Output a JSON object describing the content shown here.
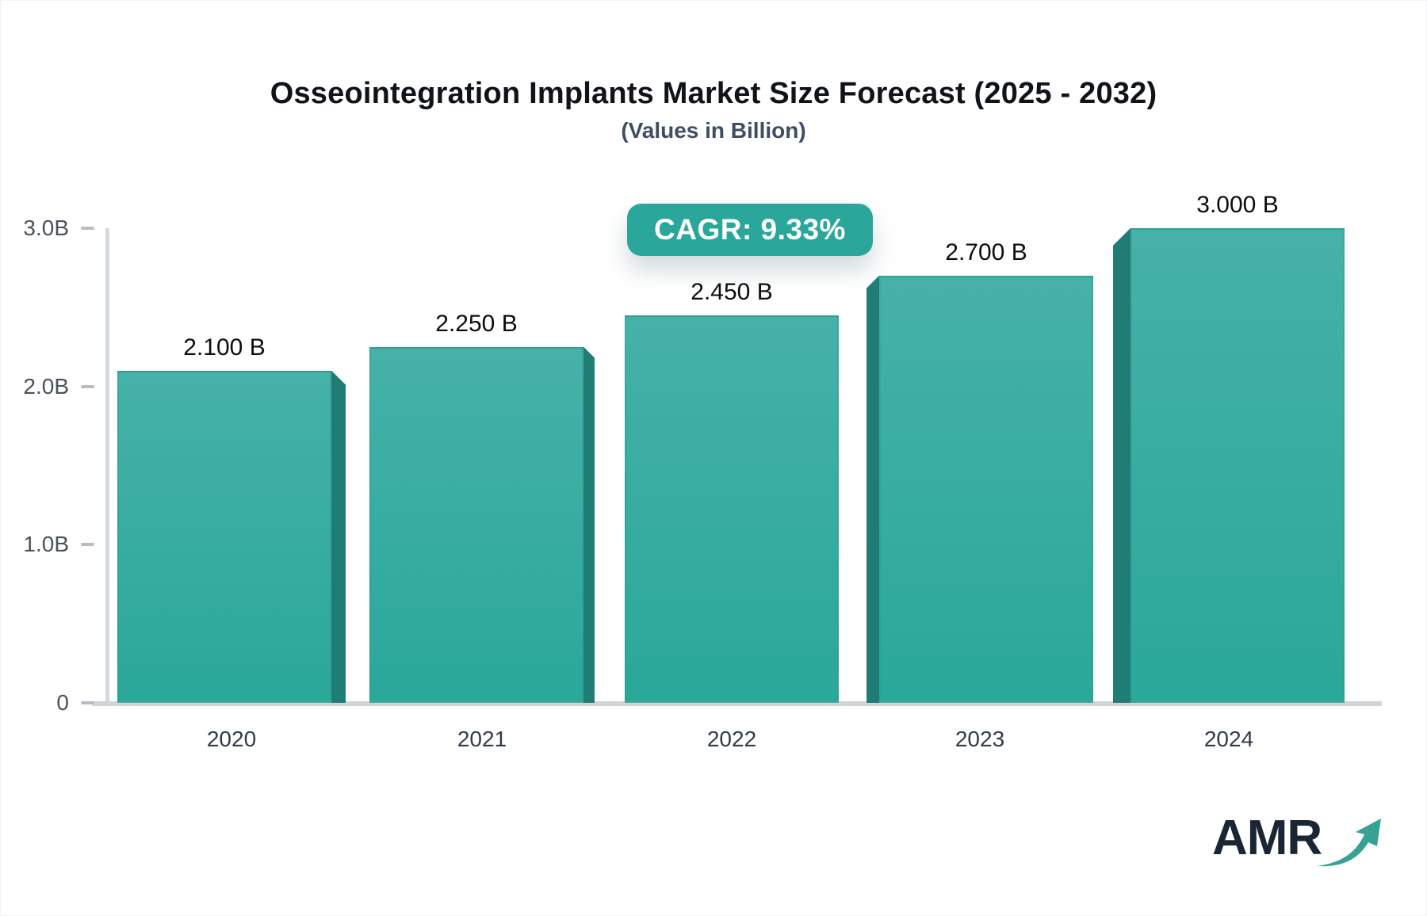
{
  "header": {
    "title": "Osseointegration Implants Market Size Forecast (2025 - 2032)",
    "subtitle": "(Values in Billion)"
  },
  "badge": {
    "label": "CAGR: 9.33%",
    "background": "#2aa79a",
    "text_color": "#ffffff"
  },
  "logo": {
    "text": "AMR",
    "text_color": "#1a2633",
    "arrow_color": "#35a295",
    "arrow_icon": "growth-arrow-icon"
  },
  "chart_data": {
    "type": "bar",
    "title": "Osseointegration Implants Market Size Forecast (2025 - 2032)",
    "subtitle": "(Values in Billion)",
    "categories": [
      "2020",
      "2021",
      "2022",
      "2023",
      "2024"
    ],
    "values": [
      2.1,
      2.25,
      2.45,
      2.7,
      3.0
    ],
    "value_labels": [
      "2.100 B",
      "2.250 B",
      "2.450 B",
      "2.700 B",
      "3.000 B"
    ],
    "cagr": "9.33%",
    "xlabel": "",
    "ylabel": "",
    "ylim": [
      0,
      3.2
    ],
    "yticks": [
      {
        "value": 0,
        "label": "0"
      },
      {
        "value": 1,
        "label": "1.0B"
      },
      {
        "value": 2,
        "label": "2.0B"
      },
      {
        "value": 3,
        "label": "3.0B"
      }
    ],
    "grid": false,
    "legend": null,
    "bar_color_top": "#46b1a8",
    "bar_color_bottom": "#2aa89a",
    "bar_side_color": "#1f7d75",
    "bar_edge_color": "#2e978d",
    "axis_color": "#d0d5d9"
  }
}
